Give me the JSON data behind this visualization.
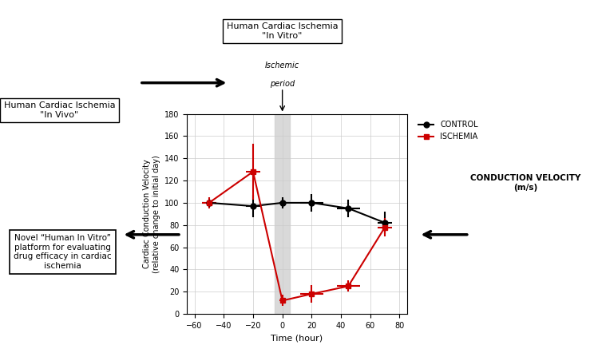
{
  "control_x": [
    -50,
    -20,
    0,
    20,
    45,
    70
  ],
  "control_y": [
    100,
    97,
    100,
    100,
    95,
    82
  ],
  "control_yerr": [
    0,
    10,
    5,
    8,
    8,
    10
  ],
  "control_xerr": [
    5,
    5,
    2,
    8,
    8,
    5
  ],
  "ischemia_x": [
    -50,
    -20,
    0,
    20,
    45,
    70
  ],
  "ischemia_y": [
    100,
    128,
    12,
    18,
    25,
    78
  ],
  "ischemia_yerr": [
    5,
    25,
    5,
    8,
    5,
    8
  ],
  "ischemia_xerr": [
    5,
    5,
    2,
    8,
    8,
    5
  ],
  "control_color": "#000000",
  "ischemia_color": "#cc0000",
  "shaded_xmin": -5,
  "shaded_xmax": 5,
  "xlabel": "Time (hour)",
  "ylabel_main": "Cardiac Conduction Velocity",
  "ylabel_sub": "(relative change to initial day)",
  "ylim": [
    0,
    180
  ],
  "yticks": [
    0,
    20,
    40,
    60,
    80,
    100,
    120,
    140,
    160,
    180
  ],
  "xlim": [
    -65,
    85
  ],
  "xticks": [
    -60,
    -40,
    -20,
    0,
    20,
    40,
    60,
    80
  ],
  "ischemic_label_line1": "Ischemic",
  "ischemic_label_line2": "period",
  "legend_control": "CONTROL",
  "legend_ischemia": "ISCHEMIA",
  "bg_color": "#ffffff",
  "grid_color": "#cccccc",
  "top_box_text": "Human Cardiac Ischemia\n\"In Vitro\"",
  "bottom_left_box_text": "Novel “Human In Vitro”\nplatform for evaluating\ndrug efficacy in cardiac\nischemia",
  "bottom_left_label_text": "Human Cardiac Ischemia\n\"In Vivo\"",
  "conduction_velocity_text": "CONDUCTION VELOCITY\n(m/s)"
}
